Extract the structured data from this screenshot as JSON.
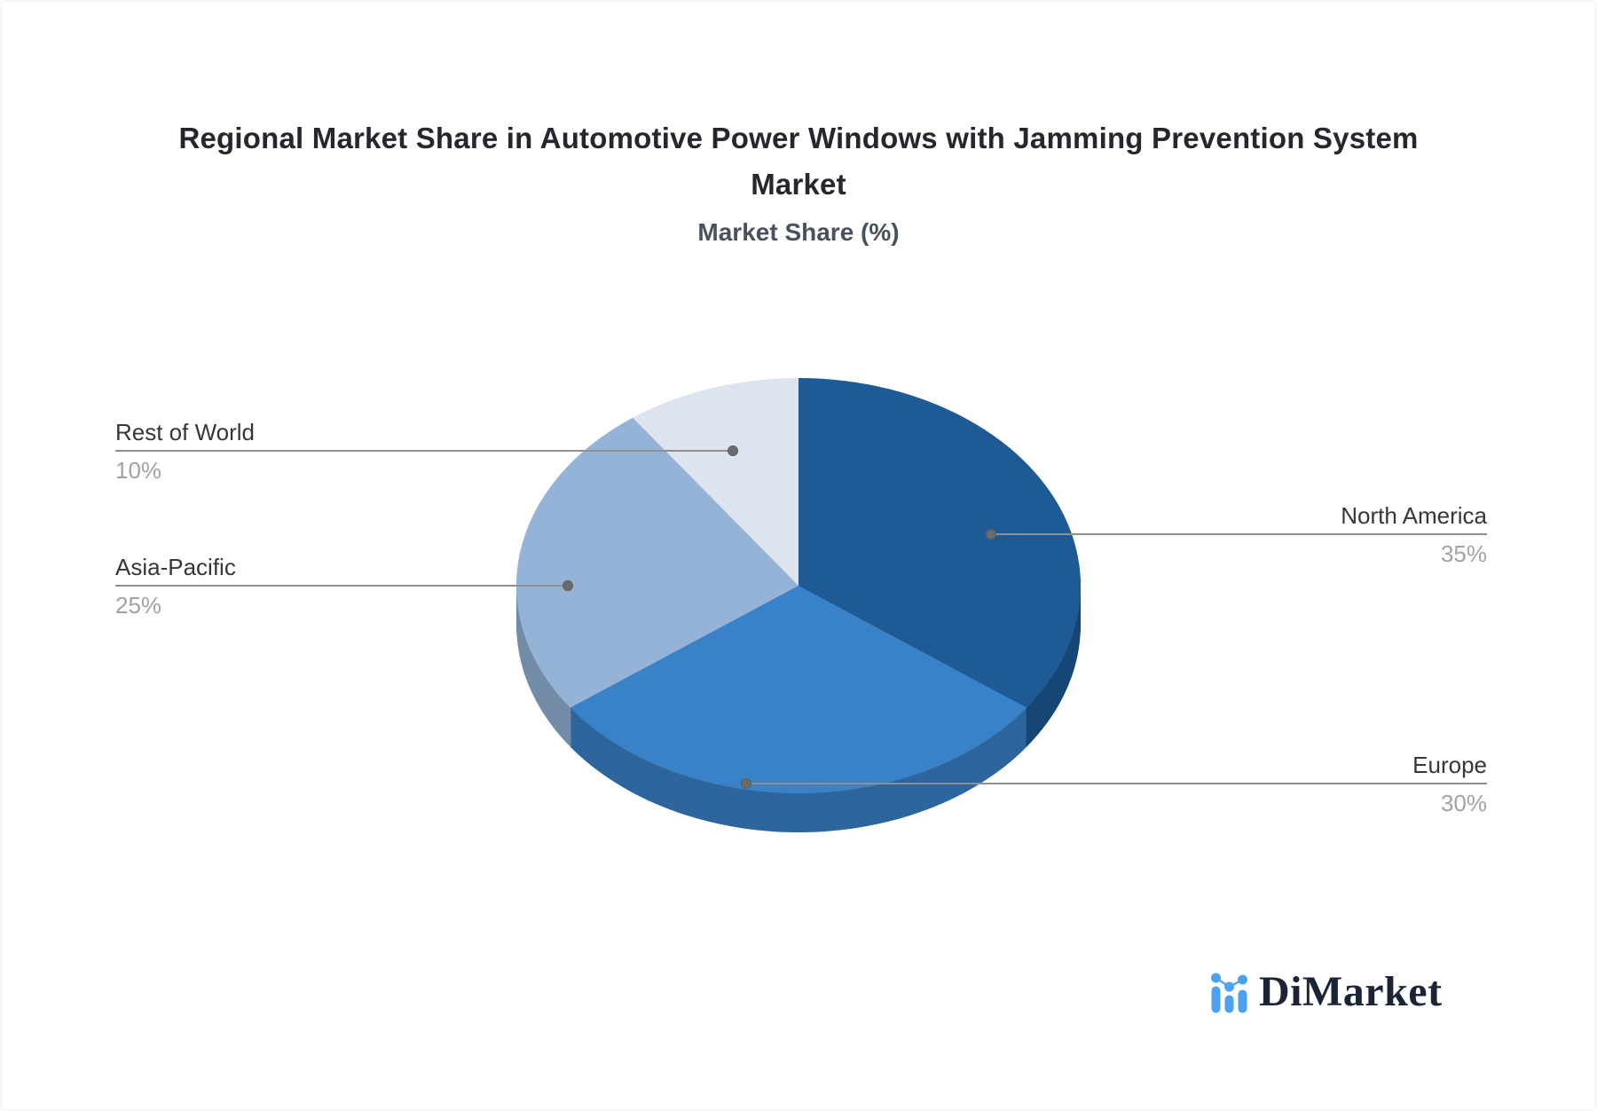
{
  "chart_data": {
    "type": "pie",
    "title": "Regional Market Share in Automotive Power Windows with Jamming Prevention System Market",
    "subtitle": "Market Share (%)",
    "unit": "%",
    "effect": "3d",
    "start_angle_deg": 0,
    "direction": "clockwise",
    "legend_position": "callout-labels",
    "segments": [
      {
        "label": "North America",
        "value": 35,
        "pct_label": "35%",
        "color": "#1d5a96"
      },
      {
        "label": "Europe",
        "value": 30,
        "pct_label": "30%",
        "color": "#3a82c8"
      },
      {
        "label": "Asia-Pacific",
        "value": 25,
        "pct_label": "25%",
        "color": "#94b3d7"
      },
      {
        "label": "Rest of World",
        "value": 10,
        "pct_label": "10%",
        "color": "#dde4ef"
      }
    ],
    "callout_line_color": "#909090",
    "callout_dot_color": "#6b6b6b",
    "label_name_color": "#363636",
    "label_pct_color": "#a2a2a2"
  },
  "logo": {
    "text": "DiMarket",
    "icon_color": "#4ba2f2"
  }
}
